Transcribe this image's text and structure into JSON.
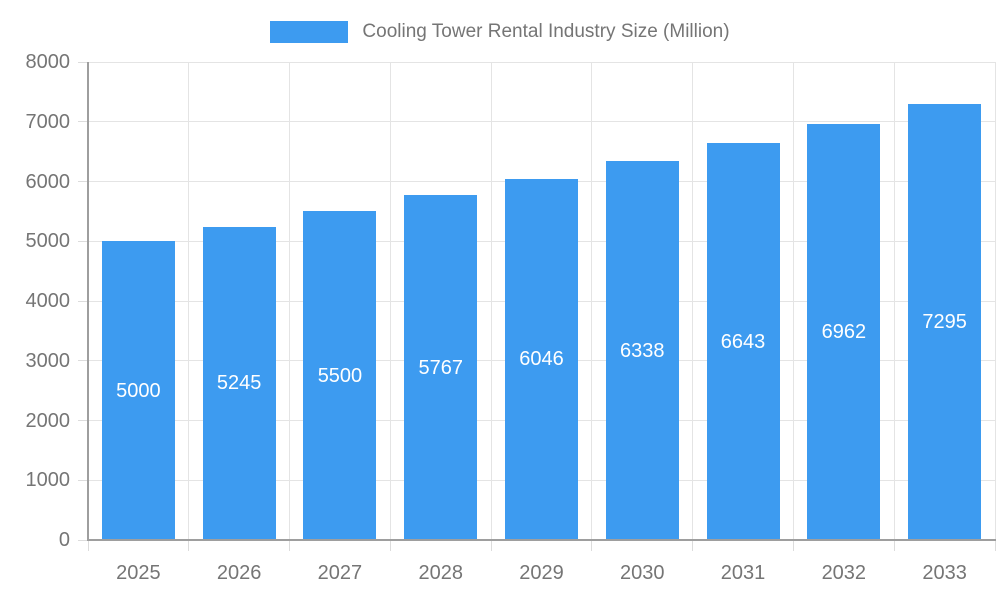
{
  "chart_data": {
    "type": "bar",
    "title": "Cooling Tower Rental Industry Size (Million)",
    "categories": [
      "2025",
      "2026",
      "2027",
      "2028",
      "2029",
      "2030",
      "2031",
      "2032",
      "2033"
    ],
    "values": [
      5000,
      5245,
      5500,
      5767,
      6046,
      6338,
      6643,
      6962,
      7295
    ],
    "xlabel": "",
    "ylabel": "",
    "ylim": [
      0,
      8000
    ],
    "yticks": [
      0,
      1000,
      2000,
      3000,
      4000,
      5000,
      6000,
      7000,
      8000
    ],
    "grid": true,
    "legend_position": "top-center",
    "value_labels": "inside-center",
    "colors": {
      "bar": "#3D9BF0",
      "grid": "#E4E4E4",
      "tick": "#DCDCDC",
      "axis": "#9E9E9E",
      "tick_label": "#757575",
      "legend_text": "#757575",
      "value_label": "#FFFFFF",
      "background": "#FFFFFF"
    }
  }
}
